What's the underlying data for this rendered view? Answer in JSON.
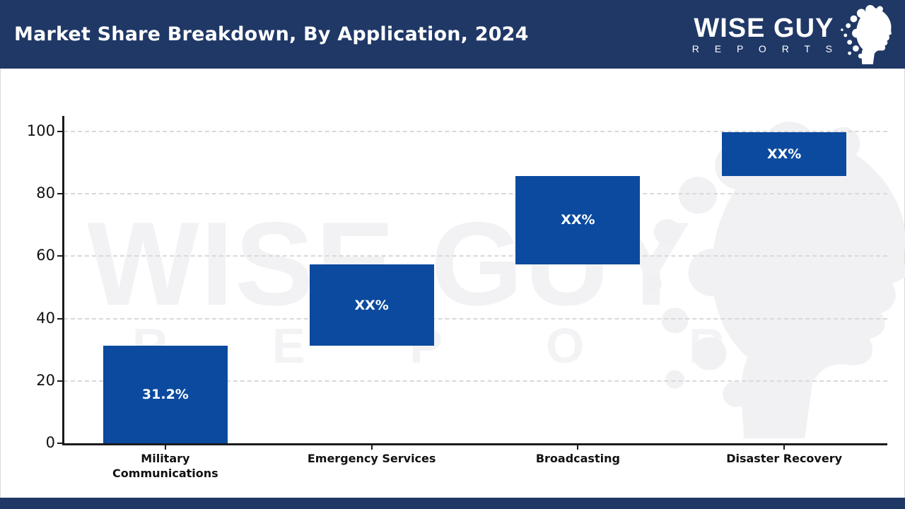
{
  "header": {
    "title": "Market Share Breakdown, By Application, 2024",
    "logo": {
      "line1": "WISE GUY",
      "line2": "R E P O R T S"
    }
  },
  "watermark": {
    "line1": "WISE GUY",
    "line2": "R E P O R T S"
  },
  "colors": {
    "header_bg": "#1f3866",
    "footer_bg": "#1f3866",
    "bar": "#0b4a9e",
    "bar_label": "#ffffff",
    "grid": "#d9d9d9",
    "axis": "#1a1a1a",
    "watermark": "#f2f2f4"
  },
  "chart_data": {
    "type": "bar",
    "subtype": "floating-waterfall",
    "title": "Market Share Breakdown, By Application, 2024",
    "categories": [
      "Military Communications",
      "Emergency Services",
      "Broadcasting",
      "Disaster Recovery"
    ],
    "category_lines": [
      [
        "Military",
        "Communications"
      ],
      [
        "Emergency Services"
      ],
      [
        "Broadcasting"
      ],
      [
        "Disaster Recovery"
      ]
    ],
    "bars": [
      {
        "category": "Military Communications",
        "start": 0,
        "end": 31.2,
        "label": "31.2%"
      },
      {
        "category": "Emergency Services",
        "start": 31.2,
        "end": 57.4,
        "label": "XX%"
      },
      {
        "category": "Broadcasting",
        "start": 57.4,
        "end": 85.8,
        "label": "XX%"
      },
      {
        "category": "Disaster Recovery",
        "start": 85.8,
        "end": 99.7,
        "label": "XX%"
      }
    ],
    "xlabel": "",
    "ylabel": "",
    "ylim": [
      0,
      100
    ],
    "yticks": [
      0,
      20,
      40,
      60,
      80,
      100
    ],
    "grid": "horizontal-dashed",
    "legend": "none",
    "bar_color": "#0b4a9e",
    "bar_label_color": "#ffffff"
  }
}
